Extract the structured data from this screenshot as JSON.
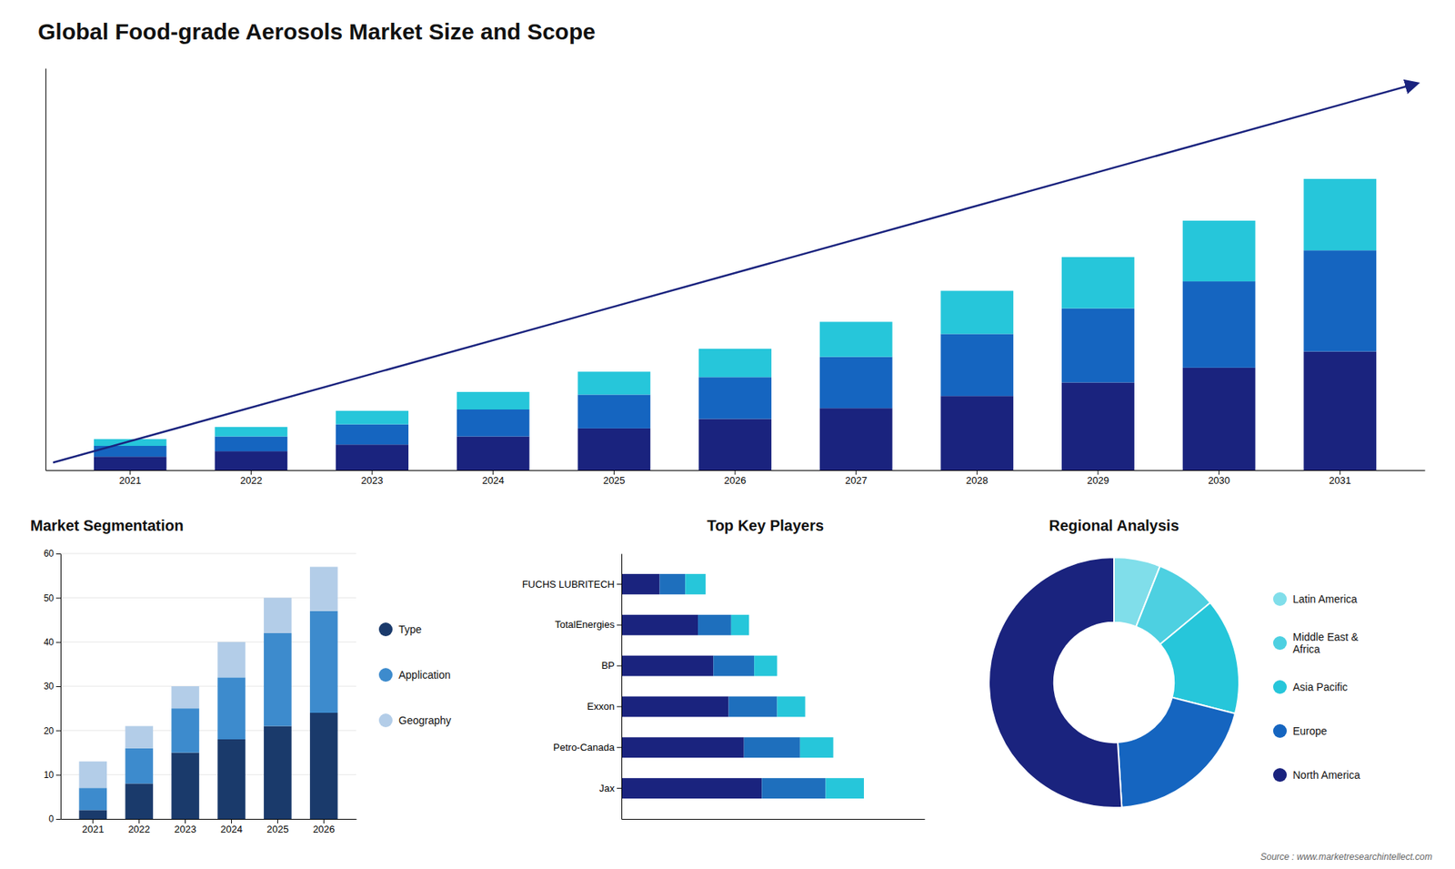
{
  "title": "Global Food-grade Aerosols Market Size and Scope",
  "annotations": [
    "Source : www.marketresearchintellect.com"
  ],
  "chart_data": [
    {
      "type": "bar",
      "stacked": true,
      "categories": [
        "2021",
        "2022",
        "2023",
        "2024",
        "2025",
        "2026",
        "2027",
        "2028",
        "2029",
        "2030",
        "2031"
      ],
      "series": [
        {
          "color": "#1a237e",
          "values": [
            1.0,
            1.4,
            1.9,
            2.5,
            3.1,
            3.8,
            4.6,
            5.5,
            6.5,
            7.6,
            8.8
          ]
        },
        {
          "color": "#1565c0",
          "values": [
            0.8,
            1.1,
            1.5,
            2.0,
            2.5,
            3.1,
            3.8,
            4.6,
            5.5,
            6.4,
            7.5
          ]
        },
        {
          "color": "#26c6da",
          "values": [
            0.5,
            0.7,
            1.0,
            1.3,
            1.7,
            2.1,
            2.6,
            3.2,
            3.8,
            4.5,
            5.3
          ]
        }
      ],
      "ylim": [
        0,
        29.808
      ],
      "tick_labels": "x",
      "grid": false
    },
    {
      "type": "bar",
      "title": "Market Segmentation",
      "stacked": true,
      "categories": [
        "2021",
        "2022",
        "2023",
        "2024",
        "2025",
        "2026"
      ],
      "series": [
        {
          "name": "Type",
          "color": "#1a3a6b",
          "values": [
            2,
            8,
            15,
            18,
            21,
            24
          ]
        },
        {
          "name": "Application",
          "color": "#3d8bcd",
          "values": [
            5,
            8,
            10,
            14,
            21,
            23
          ]
        },
        {
          "name": "Geography",
          "color": "#b3cde8",
          "values": [
            6,
            5,
            5,
            8,
            8,
            10
          ]
        }
      ],
      "ylim": [
        0,
        60
      ],
      "yticks": [
        0,
        10,
        20,
        30,
        40,
        50,
        60
      ],
      "grid": true,
      "legend": "right"
    },
    {
      "type": "bar",
      "title": "Top Key Players",
      "orientation": "horizontal",
      "stacked": true,
      "categories": [
        "Jax",
        "Petro-Canada",
        "Exxon",
        "BP",
        "TotalEnergies",
        "FUCHS LUBRITECH"
      ],
      "series": [
        {
          "color": "#1a237e",
          "values": [
            5.5,
            4.8,
            4.2,
            3.6,
            3.0,
            1.5
          ]
        },
        {
          "color": "#1e6fbd",
          "values": [
            2.5,
            2.2,
            1.9,
            1.6,
            1.3,
            1.0
          ]
        },
        {
          "color": "#26c6da",
          "values": [
            1.5,
            1.3,
            1.1,
            0.9,
            0.7,
            0.8
          ]
        }
      ],
      "xlim": [
        0,
        11.875
      ],
      "tick_labels": "y",
      "grid": false
    },
    {
      "type": "pie",
      "title": "Regional Analysis",
      "categories": [
        "Latin America",
        "Middle East &\nAfrica",
        "Asia Pacific",
        "Europe",
        "North America"
      ],
      "values": [
        6,
        8,
        15,
        20,
        51
      ],
      "colors": [
        "#80deea",
        "#4dd0e1",
        "#26c6da",
        "#1565c0",
        "#1a237e"
      ],
      "legend": "right"
    }
  ]
}
